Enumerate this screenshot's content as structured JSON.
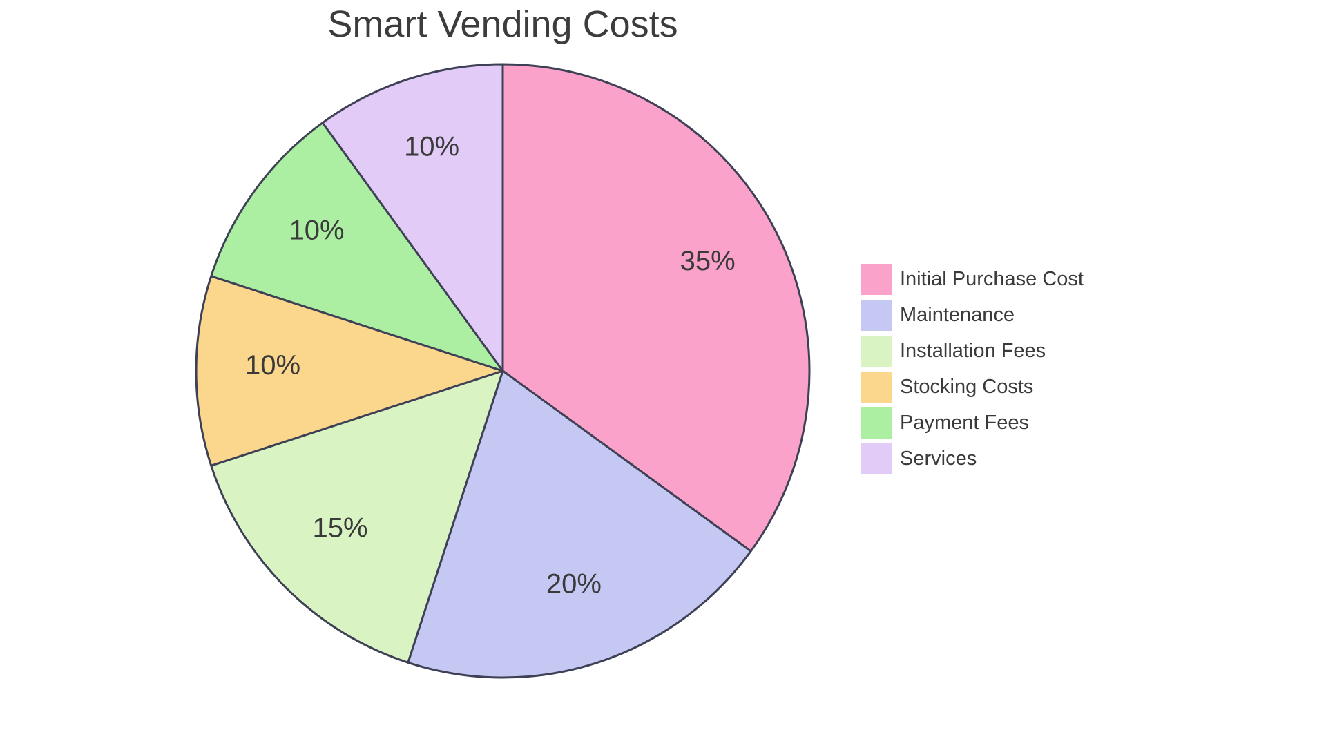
{
  "chart_data": {
    "type": "pie",
    "title": "Smart Vending Costs",
    "labels": [
      "Initial Purchase Cost",
      "Maintenance",
      "Installation Fees",
      "Stocking Costs",
      "Payment Fees",
      "Services"
    ],
    "values": [
      35,
      20,
      15,
      10,
      10,
      10
    ],
    "pct_labels": [
      "35%",
      "20%",
      "15%",
      "10%",
      "10%",
      "10%"
    ],
    "colors": [
      "#FAA2C9",
      "#C6C8F4",
      "#D9F4C2",
      "#FBD78D",
      "#ACEFA3",
      "#E2CCF7"
    ],
    "stroke_color": "#3E4155",
    "pct_label_color": "#3A3A3A",
    "title_color": "#3C3C3C",
    "legend_position": "right",
    "start_angle_deg": -90,
    "direction": "clockwise",
    "grid": false
  }
}
